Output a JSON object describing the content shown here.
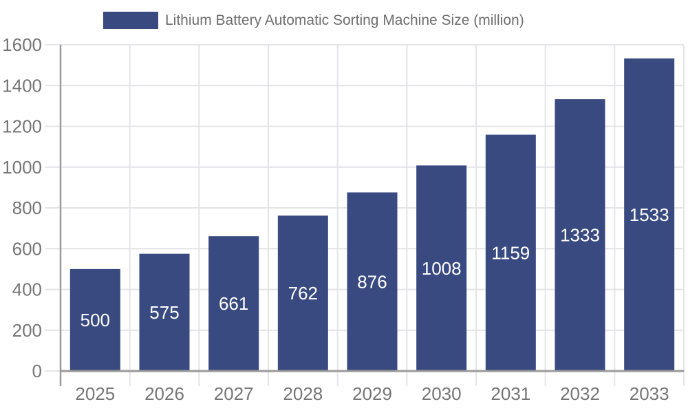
{
  "chart_data": {
    "type": "bar",
    "title": "Lithium Battery Automatic Sorting Machine Size (million)",
    "categories": [
      "2025",
      "2026",
      "2027",
      "2028",
      "2029",
      "2030",
      "2031",
      "2032",
      "2033"
    ],
    "values": [
      500,
      575,
      661,
      762,
      876,
      1008,
      1159,
      1333,
      1533
    ],
    "xlabel": "",
    "ylabel": "",
    "ylim": [
      0,
      1600
    ],
    "yticks": [
      0,
      200,
      400,
      600,
      800,
      1000,
      1200,
      1400,
      1600
    ],
    "grid": true,
    "legend_position": "top",
    "value_labels": "inside-center",
    "colors": {
      "bar": "#394a80",
      "value_label": "#ffffff",
      "axis_text": "#757575",
      "grid_line": "#e4e4e8",
      "axis_line": "#9a9a9a",
      "legend_text": "#6e6e6e",
      "background": "#ffffff"
    }
  },
  "legend": {
    "label": "Lithium Battery Automatic Sorting Machine Size (million)"
  }
}
